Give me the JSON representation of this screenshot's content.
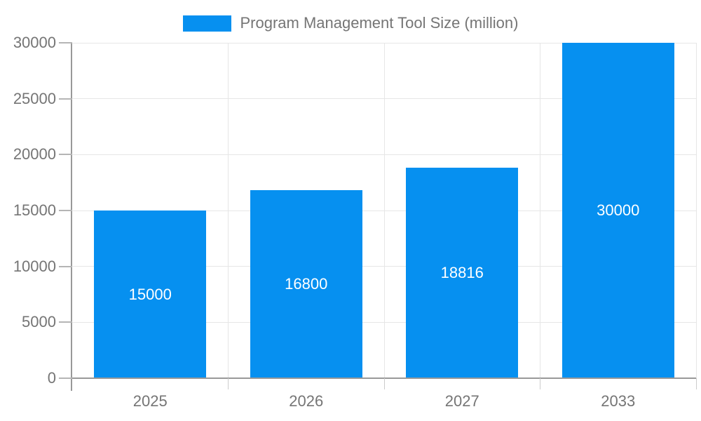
{
  "chart_data": {
    "type": "bar",
    "categories": [
      "2025",
      "2026",
      "2027",
      "2033"
    ],
    "series": [
      {
        "name": "Program Management Tool Size (million)",
        "values": [
          15000,
          16800,
          18816,
          30000
        ]
      }
    ],
    "bar_value_labels": [
      "15000",
      "16800",
      "18816",
      "30000"
    ],
    "xlabel": "",
    "ylabel": "",
    "ylim": [
      0,
      30000
    ],
    "yticks": [
      0,
      5000,
      10000,
      15000,
      20000,
      25000,
      30000
    ],
    "grid": true,
    "legend_position": "top",
    "colors": {
      "bar": "#0690f0",
      "bar_value_text": "#ffffff",
      "axis_text": "#757575",
      "legend_text": "#757575",
      "axis_line": "#999999",
      "gridline": "#e6e6e6",
      "y_tick_mark": "#b5b5b5",
      "x_tick_mark": "#cccccc",
      "background": "#ffffff"
    }
  },
  "legend": {
    "label": "Program Management Tool Size (million)"
  }
}
